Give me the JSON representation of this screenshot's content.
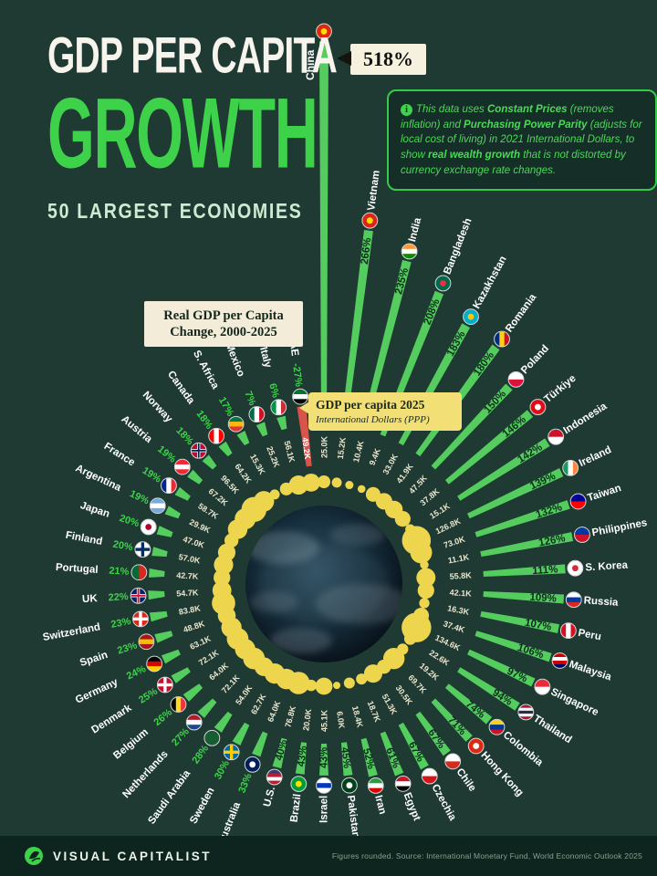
{
  "title": {
    "line1": "GDP PER CAPITA",
    "line2": "GROWTH",
    "subtitle": "50 LARGEST ECONOMIES"
  },
  "label_box": {
    "line1": "Real GDP per Capita",
    "line2": "Change, 2000-2025"
  },
  "callouts": {
    "china_growth": "518%",
    "gdp_title": "GDP per capita 2025",
    "gdp_subtitle": "International Dollars (PPP)"
  },
  "note": {
    "segments": [
      {
        "t": "This data uses ",
        "b": false
      },
      {
        "t": "Constant Prices",
        "b": true
      },
      {
        "t": " (removes inflation) and ",
        "b": false
      },
      {
        "t": "Purchasing Power Parity",
        "b": true
      },
      {
        "t": " (adjusts for local cost of living) in 2021 International Dollars, to show ",
        "b": false
      },
      {
        "t": "real wealth growth",
        "b": true
      },
      {
        "t": " that is not distorted by currency exchange rate changes.",
        "b": false
      }
    ]
  },
  "footer": {
    "brand": "VISUAL CAPITALIST",
    "source": "Figures rounded. Source: International Monetary Fund, World Economic Outlook 2025"
  },
  "colors": {
    "background": "#1e3a33",
    "bar_green": "#54cd5e",
    "bar_negative": "#d9534a",
    "accent_green": "#3ed24b",
    "yellow": "#eed54e",
    "percent_dark": "#0d2b1e",
    "value_text": "#ece6cf",
    "name_text": "#ffffff"
  },
  "chart_data": {
    "type": "radial-bar",
    "title": "Real GDP per Capita Change, 2000-2025",
    "period": "2000-2025",
    "units": {
      "growth": "% change in real GDP per capita, 2000-2025",
      "gdp": "GDP per capita 2025, International Dollars (PPP)"
    },
    "countries": [
      {
        "name": "China",
        "growth": 518,
        "gdp": "25.0K",
        "flag": [
          "#de2910"
        ],
        "dot": "#ffde00"
      },
      {
        "name": "Vietnam",
        "growth": 266,
        "gdp": "15.2K",
        "flag": [
          "#da251d"
        ],
        "dot": "#ffde00"
      },
      {
        "name": "India",
        "growth": 235,
        "gdp": "10.4K",
        "flag": [
          "#ff9933",
          "#ffffff",
          "#138808"
        ]
      },
      {
        "name": "Bangladesh",
        "growth": 208,
        "gdp": "9.4K",
        "flag": [
          "#006a4e"
        ],
        "dot": "#f42a41"
      },
      {
        "name": "Kazakhstan",
        "growth": 183,
        "gdp": "33.0K",
        "flag": [
          "#00afca"
        ],
        "dot": "#fec50c"
      },
      {
        "name": "Romania",
        "growth": 180,
        "gdp": "41.9K",
        "flag": [
          "#002b7f",
          "#fcd116",
          "#ce1126"
        ],
        "fdir": "v"
      },
      {
        "name": "Poland",
        "growth": 150,
        "gdp": "47.5K",
        "flag": [
          "#ffffff",
          "#dc143c"
        ]
      },
      {
        "name": "Türkiye",
        "growth": 146,
        "gdp": "37.8K",
        "flag": [
          "#e30a17"
        ],
        "dot": "#ffffff"
      },
      {
        "name": "Indonesia",
        "growth": 142,
        "gdp": "15.1K",
        "flag": [
          "#ce1126",
          "#ffffff"
        ]
      },
      {
        "name": "Ireland",
        "growth": 139,
        "gdp": "126.8K",
        "flag": [
          "#169b62",
          "#ffffff",
          "#ff883e"
        ],
        "fdir": "v"
      },
      {
        "name": "Taiwan",
        "growth": 132,
        "gdp": "73.0K",
        "flag": [
          "#000095",
          "#fe0000"
        ]
      },
      {
        "name": "Philippines",
        "growth": 126,
        "gdp": "11.1K",
        "flag": [
          "#0038a8",
          "#ce1126"
        ]
      },
      {
        "name": "S. Korea",
        "growth": 111,
        "gdp": "55.8K",
        "flag": [
          "#ffffff"
        ],
        "dot": "#cd2e3a"
      },
      {
        "name": "Russia",
        "growth": 109,
        "gdp": "42.1K",
        "flag": [
          "#ffffff",
          "#0039a6",
          "#d52b1e"
        ]
      },
      {
        "name": "Peru",
        "growth": 107,
        "gdp": "16.3K",
        "flag": [
          "#d91023",
          "#ffffff",
          "#d91023"
        ],
        "fdir": "v"
      },
      {
        "name": "Malaysia",
        "growth": 106,
        "gdp": "37.4K",
        "flag": [
          "#cc0001",
          "#ffffff",
          "#cc0001",
          "#010066"
        ]
      },
      {
        "name": "Singapore",
        "growth": 97,
        "gdp": "134.6K",
        "flag": [
          "#ed2939",
          "#ffffff"
        ]
      },
      {
        "name": "Thailand",
        "growth": 94,
        "gdp": "22.6K",
        "flag": [
          "#a51931",
          "#f4f5f8",
          "#2d2a4a",
          "#f4f5f8",
          "#a51931"
        ]
      },
      {
        "name": "Colombia",
        "growth": 74,
        "gdp": "19.2K",
        "flag": [
          "#fcd116",
          "#003893",
          "#ce1126"
        ]
      },
      {
        "name": "Hong Kong",
        "growth": 71,
        "gdp": "69.7K",
        "flag": [
          "#de2910"
        ],
        "dot": "#ffffff"
      },
      {
        "name": "Chile",
        "growth": 67,
        "gdp": "30.5K",
        "flag": [
          "#ffffff",
          "#d52b1e"
        ]
      },
      {
        "name": "Czechia",
        "growth": 67,
        "gdp": "51.3K",
        "flag": [
          "#ffffff",
          "#d7141a"
        ]
      },
      {
        "name": "Egypt",
        "growth": 61,
        "gdp": "18.7K",
        "flag": [
          "#ce1126",
          "#ffffff",
          "#000000"
        ]
      },
      {
        "name": "Iran",
        "growth": 52,
        "gdp": "18.4K",
        "flag": [
          "#239f40",
          "#ffffff",
          "#da0000"
        ]
      },
      {
        "name": "Pakistan",
        "growth": 45,
        "gdp": "6.0K",
        "flag": [
          "#01411c"
        ],
        "dot": "#ffffff"
      },
      {
        "name": "Israel",
        "growth": 43,
        "gdp": "45.1K",
        "flag": [
          "#ffffff",
          "#0038b8",
          "#ffffff"
        ]
      },
      {
        "name": "Brazil",
        "growth": 43,
        "gdp": "20.0K",
        "flag": [
          "#009c3b"
        ],
        "dot": "#ffdf00"
      },
      {
        "name": "U.S.",
        "growth": 40,
        "gdp": "76.8K",
        "flag": [
          "#3c3b6e",
          "#b22234",
          "#ffffff",
          "#b22234"
        ]
      },
      {
        "name": "Australia",
        "growth": 33,
        "gdp": "64.0K",
        "flag": [
          "#00205b"
        ],
        "dot": "#ffffff"
      },
      {
        "name": "Sweden",
        "growth": 30,
        "gdp": "62.7K",
        "flag": [
          "#006aa7"
        ],
        "cross": "#fecc00"
      },
      {
        "name": "Saudi Arabia",
        "growth": 28,
        "gdp": "54.0K",
        "flag": [
          "#165d31"
        ]
      },
      {
        "name": "Netherlands",
        "growth": 27,
        "gdp": "72.1K",
        "flag": [
          "#ae1c28",
          "#ffffff",
          "#21468b"
        ]
      },
      {
        "name": "Belgium",
        "growth": 26,
        "gdp": "64.0K",
        "flag": [
          "#000000",
          "#fdda24",
          "#ef3340"
        ],
        "fdir": "v"
      },
      {
        "name": "Denmark",
        "growth": 25,
        "gdp": "72.1K",
        "flag": [
          "#c8102e"
        ],
        "cross": "#ffffff"
      },
      {
        "name": "Germany",
        "growth": 24,
        "gdp": "63.1K",
        "flag": [
          "#000000",
          "#dd0000",
          "#ffce00"
        ]
      },
      {
        "name": "Spain",
        "growth": 23,
        "gdp": "48.8K",
        "flag": [
          "#aa151b",
          "#f1bf00",
          "#aa151b"
        ]
      },
      {
        "name": "Switzerland",
        "growth": 23,
        "gdp": "83.8K",
        "flag": [
          "#da291c"
        ],
        "cross": "#ffffff"
      },
      {
        "name": "UK",
        "growth": 22,
        "gdp": "54.7K",
        "flag": [
          "#012169"
        ],
        "cross": "#ffffff",
        "cross2": "#c8102e"
      },
      {
        "name": "Portugal",
        "growth": 21,
        "gdp": "42.7K",
        "flag": [
          "#046a38",
          "#da291c"
        ],
        "fdir": "v"
      },
      {
        "name": "Finland",
        "growth": 20,
        "gdp": "57.0K",
        "flag": [
          "#ffffff"
        ],
        "cross": "#002f6c"
      },
      {
        "name": "Japan",
        "growth": 20,
        "gdp": "47.0K",
        "flag": [
          "#ffffff"
        ],
        "dot": "#bc002d"
      },
      {
        "name": "Argentina",
        "growth": 19,
        "gdp": "29.9K",
        "flag": [
          "#74acdf",
          "#ffffff",
          "#74acdf"
        ]
      },
      {
        "name": "France",
        "growth": 19,
        "gdp": "58.7K",
        "flag": [
          "#002395",
          "#ffffff",
          "#ed2939"
        ],
        "fdir": "v"
      },
      {
        "name": "Austria",
        "growth": 19,
        "gdp": "67.2K",
        "flag": [
          "#ed2939",
          "#ffffff",
          "#ed2939"
        ]
      },
      {
        "name": "Norway",
        "growth": 18,
        "gdp": "96.5K",
        "flag": [
          "#ba0c2f"
        ],
        "cross": "#ffffff",
        "cross2": "#00205b"
      },
      {
        "name": "Canada",
        "growth": 18,
        "gdp": "64.2K",
        "flag": [
          "#ff0000",
          "#ffffff",
          "#ff0000"
        ],
        "fdir": "v"
      },
      {
        "name": "S. Africa",
        "growth": 17,
        "gdp": "15.3K",
        "flag": [
          "#007847",
          "#ffb612",
          "#de3831"
        ]
      },
      {
        "name": "Mexico",
        "growth": 7,
        "gdp": "25.2K",
        "flag": [
          "#006847",
          "#ffffff",
          "#ce1126"
        ],
        "fdir": "v"
      },
      {
        "name": "Italy",
        "growth": 6,
        "gdp": "56.1K",
        "flag": [
          "#009246",
          "#ffffff",
          "#ce2b37"
        ],
        "fdir": "v"
      },
      {
        "name": "UAE",
        "growth": -27,
        "gdp": "49.2K",
        "flag": [
          "#00732f",
          "#ffffff",
          "#000000"
        ]
      }
    ]
  }
}
